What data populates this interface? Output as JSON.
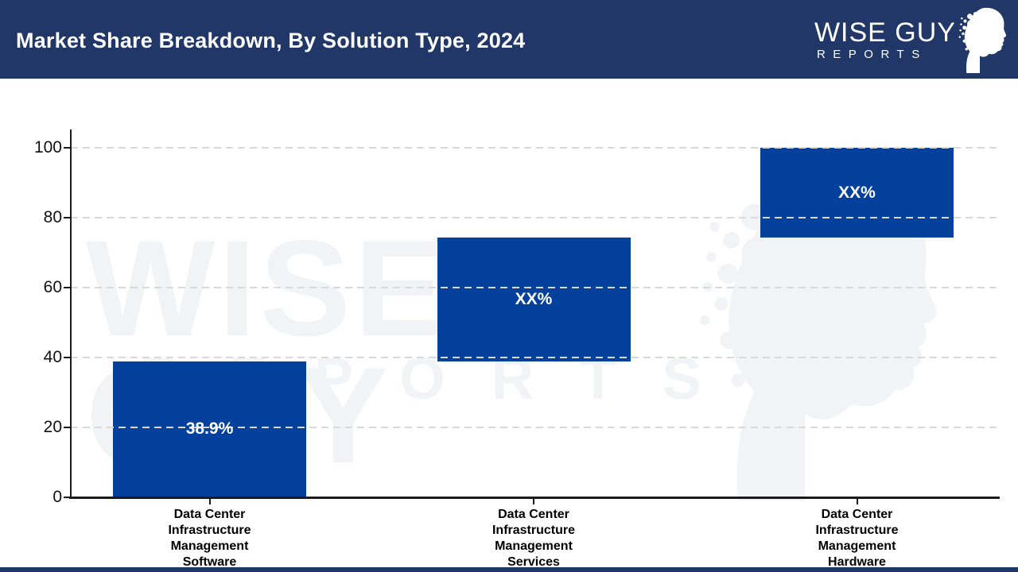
{
  "header": {
    "title": "Market Share Breakdown, By Solution Type, 2024",
    "logo": {
      "line1": "WISE GUY",
      "line2": "REPORTS"
    }
  },
  "watermark": {
    "line1": "WISE GUY",
    "line2": "REPORTS"
  },
  "footer": {},
  "chart_data": {
    "type": "bar",
    "subtype": "waterfall",
    "title": "Market Share Breakdown, By Solution Type, 2024",
    "xlabel": "",
    "ylabel": "",
    "ylim": [
      0,
      100
    ],
    "yticks": [
      0,
      20,
      40,
      60,
      80,
      100
    ],
    "grid": "horizontal-dashed",
    "legend": "none",
    "bar_color": "#04419c",
    "categories": [
      "Data Center\nInfrastructure\nManagement\nSoftware",
      "Data Center\nInfrastructure\nManagement\nServices",
      "Data Center\nInfrastructure\nManagement\nHardware"
    ],
    "segments": [
      {
        "from": 0,
        "to": 38.9,
        "label": "38.9%"
      },
      {
        "from": 38.9,
        "to": 74.3,
        "label": "XX%"
      },
      {
        "from": 74.3,
        "to": 100,
        "label": "XX%"
      }
    ]
  },
  "colors": {
    "header_navy": "#213768",
    "bar_blue": "#04419c",
    "gridline": "#d9d9d9",
    "watermark_gray": "#f2f3f6"
  }
}
